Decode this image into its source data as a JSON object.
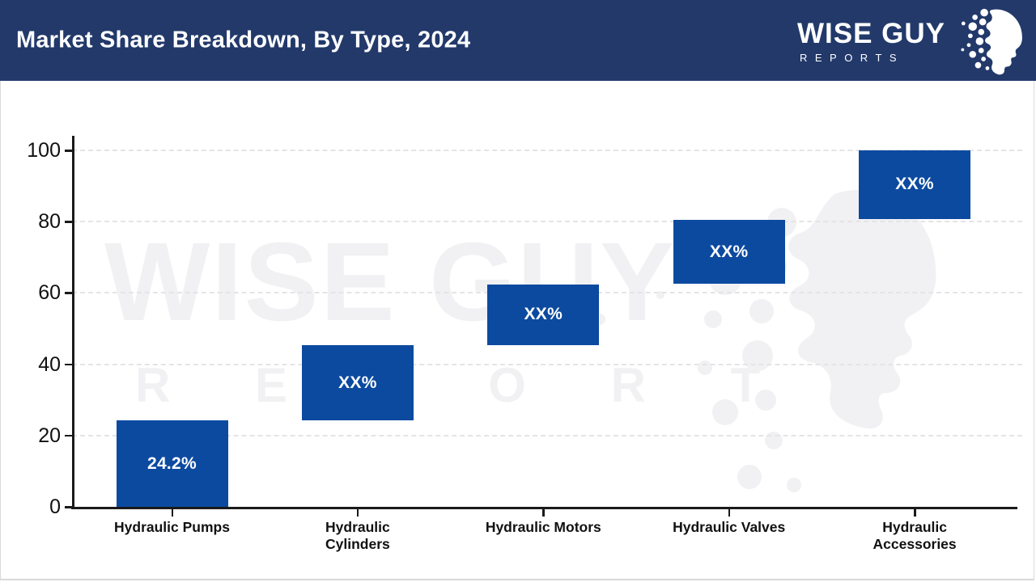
{
  "header": {
    "title": "Market Share Breakdown, By Type, 2024",
    "logo": {
      "brand_top": "WISE GUY",
      "brand_bottom": "REPORTS"
    }
  },
  "watermark": {
    "line1": "WISE GUY",
    "line2": "R E P O R T S"
  },
  "colors": {
    "header_bg": "#22396a",
    "bar_fill": "#0c4aa0",
    "grid_line": "#e4e4e6",
    "axis": "#1a1a1a",
    "title_text": "#ffffff",
    "bar_label_text": "#ffffff",
    "watermark": "#f1f1f3"
  },
  "chart_data": {
    "type": "bar",
    "variant": "waterfall",
    "title": "Market Share Breakdown, By Type, 2024",
    "categories": [
      "Hydraulic Pumps",
      "Hydraulic Cylinders",
      "Hydraulic Motors",
      "Hydraulic Valves",
      "Hydraulic Accessories"
    ],
    "tick_display_labels": [
      "Hydraulic Pumps",
      "Hydraulic\nCylinders",
      "Hydraulic Motors",
      "Hydraulic Valves",
      "Hydraulic\nAccessories"
    ],
    "segments": [
      {
        "category": "Hydraulic Pumps",
        "start": 0,
        "end": 24.2,
        "label": "24.2%"
      },
      {
        "category": "Hydraulic Cylinders",
        "start": 24.2,
        "end": 45.3,
        "label": "XX%"
      },
      {
        "category": "Hydraulic Motors",
        "start": 45.4,
        "end": 62.4,
        "label": "XX%"
      },
      {
        "category": "Hydraulic Valves",
        "start": 62.6,
        "end": 80.4,
        "label": "XX%"
      },
      {
        "category": "Hydraulic Accessories",
        "start": 80.8,
        "end": 100,
        "label": "XX%"
      }
    ],
    "xlabel": "",
    "ylabel": "",
    "ylim": [
      0,
      105
    ],
    "yticks": [
      0,
      20,
      40,
      60,
      80,
      100
    ],
    "grid": "horizontal-dashed",
    "legend": "none"
  }
}
